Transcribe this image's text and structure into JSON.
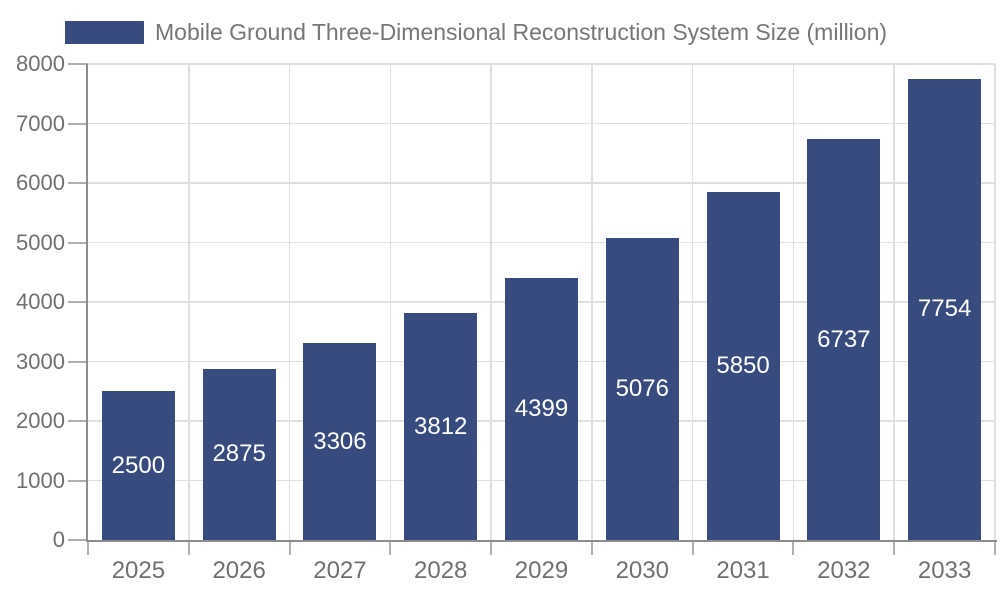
{
  "chart_data": {
    "type": "bar",
    "legend": {
      "label": "Mobile Ground Three-Dimensional Reconstruction System Size (million)",
      "position": "top-left"
    },
    "categories": [
      "2025",
      "2026",
      "2027",
      "2028",
      "2029",
      "2030",
      "2031",
      "2032",
      "2033"
    ],
    "values": [
      2500,
      2875,
      3306,
      3812,
      4399,
      5076,
      5850,
      6737,
      7754
    ],
    "xlabel": "",
    "ylabel": "",
    "ylim": [
      0,
      8000
    ],
    "y_ticks": [
      0,
      1000,
      2000,
      3000,
      4000,
      5000,
      6000,
      7000,
      8000
    ],
    "grid": true,
    "value_labels_position": "inside-center",
    "colors": {
      "bar": "#374b7e",
      "value_label": "#ffffff",
      "grid": "#e0e0e0",
      "axis_line": "#8c8c8c",
      "tick": "#b0b0b0",
      "axis_text": "#707070",
      "legend_text": "#767676",
      "background": "#ffffff"
    }
  }
}
